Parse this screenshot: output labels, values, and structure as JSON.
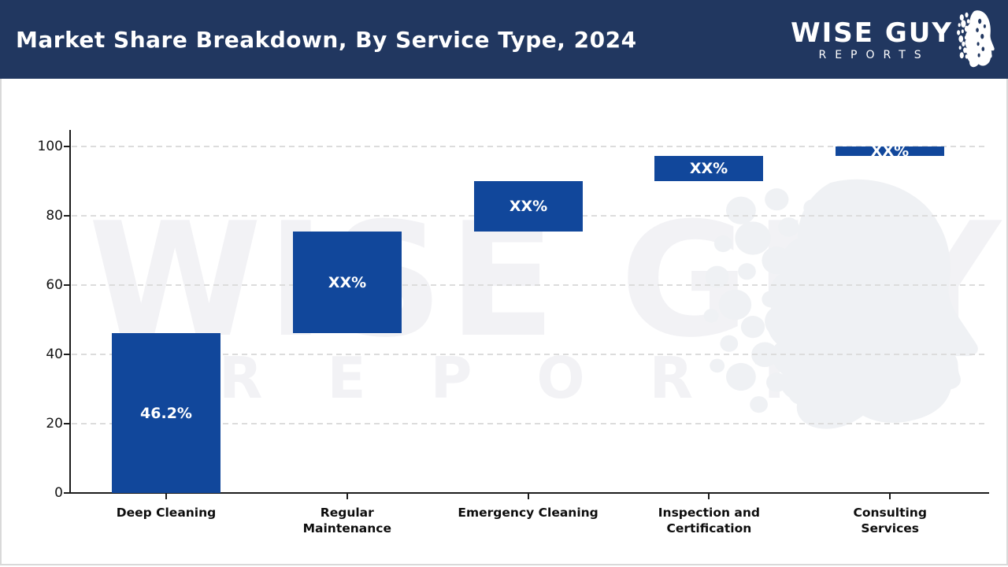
{
  "header": {
    "title": "Market Share Breakdown, By Service Type, 2024",
    "logo": {
      "wordmark": "WISE GUY",
      "subtext": "REPORTS"
    }
  },
  "watermark": {
    "line1": "WISE GUY",
    "line2": "REPORTS"
  },
  "colors": {
    "header_bg": "#213760",
    "bar_fill": "#11479b",
    "gridline": "#dcdcdc",
    "axis": "#1c1c1c",
    "watermark": "#f2f2f5"
  },
  "chart_data": {
    "type": "bar",
    "subtype": "waterfall",
    "title": "Market Share Breakdown, By Service Type, 2024",
    "xlabel": "",
    "ylabel": "",
    "ylim": [
      0,
      100
    ],
    "yticks": [
      0,
      20,
      40,
      60,
      80,
      100
    ],
    "grid": "dashed-horizontal",
    "legend": "none",
    "categories": [
      "Deep Cleaning",
      "Regular Maintenance",
      "Emergency Cleaning",
      "Inspection and Certification",
      "Consulting Services"
    ],
    "category_display_lines": [
      [
        "Deep Cleaning"
      ],
      [
        "Regular",
        "Maintenance"
      ],
      [
        "Emergency Cleaning"
      ],
      [
        "Inspection and",
        "Certification"
      ],
      [
        "Consulting",
        "Services"
      ]
    ],
    "series": [
      {
        "name": "Market Share",
        "points": [
          {
            "category": "Deep Cleaning",
            "label": "46.2%",
            "value": 46.2,
            "cumulative_start": 0,
            "cumulative_end": 46.2
          },
          {
            "category": "Regular Maintenance",
            "label": "XX%",
            "value": 29.3,
            "cumulative_start": 46.2,
            "cumulative_end": 75.5
          },
          {
            "category": "Emergency Cleaning",
            "label": "XX%",
            "value": 14.5,
            "cumulative_start": 75.5,
            "cumulative_end": 90.0
          },
          {
            "category": "Inspection and Certification",
            "label": "XX%",
            "value": 7.3,
            "cumulative_start": 90.0,
            "cumulative_end": 97.3
          },
          {
            "category": "Consulting Services",
            "label": "XX%",
            "value": 2.7,
            "cumulative_start": 97.3,
            "cumulative_end": 100.0
          }
        ]
      }
    ]
  }
}
